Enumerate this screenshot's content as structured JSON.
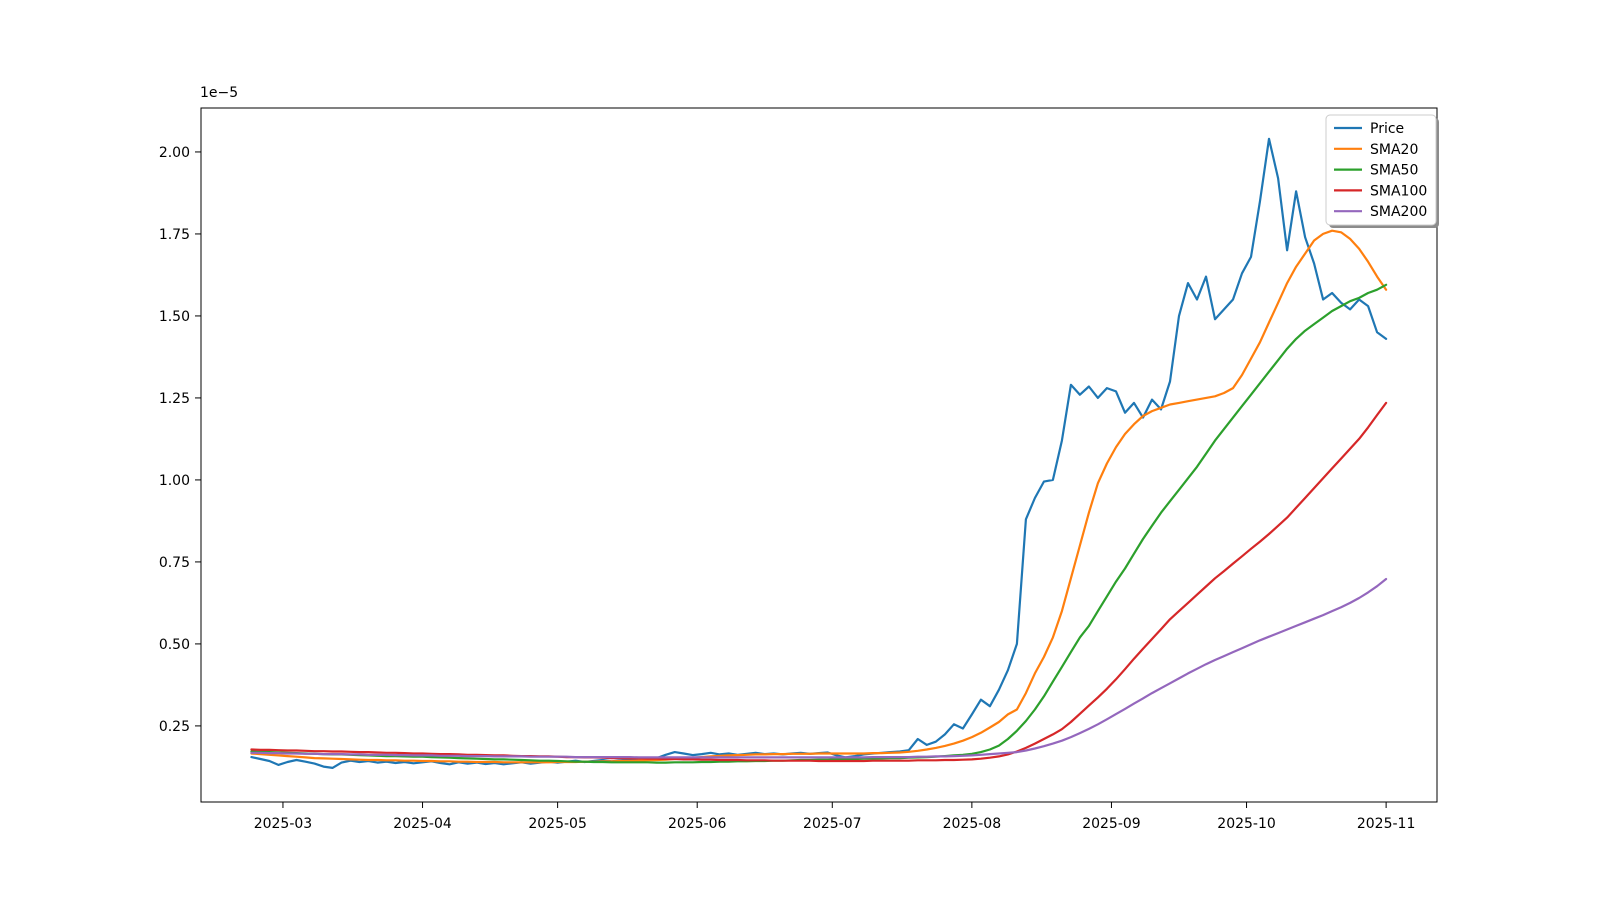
{
  "figure": {
    "offset_label": "1e−5",
    "background": "#ffffff"
  },
  "legend": {
    "position": "upper right",
    "entries": [
      {
        "label": "Price",
        "color": "#1f77b4"
      },
      {
        "label": "SMA20",
        "color": "#ff7f0e"
      },
      {
        "label": "SMA50",
        "color": "#2ca02c"
      },
      {
        "label": "SMA100",
        "color": "#d62728"
      },
      {
        "label": "SMA200",
        "color": "#9467bd"
      }
    ]
  },
  "chart_data": {
    "type": "line",
    "title": "",
    "xlabel": "",
    "ylabel": "",
    "grid": false,
    "y_scale_factor": "1e−5",
    "legend_position": "upper right",
    "x_unit": "days since 2025-02-22",
    "xlim_days": [
      -11.2,
      263.3
    ],
    "ylim": [
      0.018,
      2.134
    ],
    "x_ticks": [
      {
        "day": 7,
        "label": "2025-03"
      },
      {
        "day": 38,
        "label": "2025-04"
      },
      {
        "day": 68,
        "label": "2025-05"
      },
      {
        "day": 99,
        "label": "2025-06"
      },
      {
        "day": 129,
        "label": "2025-07"
      },
      {
        "day": 160,
        "label": "2025-08"
      },
      {
        "day": 191,
        "label": "2025-09"
      },
      {
        "day": 221,
        "label": "2025-10"
      },
      {
        "day": 252,
        "label": "2025-11"
      }
    ],
    "y_ticks": [
      {
        "value": 0.25,
        "label": "0.25"
      },
      {
        "value": 0.5,
        "label": "0.50"
      },
      {
        "value": 0.75,
        "label": "0.75"
      },
      {
        "value": 1.0,
        "label": "1.00"
      },
      {
        "value": 1.25,
        "label": "1.25"
      },
      {
        "value": 1.5,
        "label": "1.50"
      },
      {
        "value": 1.75,
        "label": "1.75"
      },
      {
        "value": 2.0,
        "label": "2.00"
      }
    ],
    "days": [
      0,
      2,
      4,
      6,
      8,
      10,
      12,
      14,
      16,
      18,
      20,
      22,
      24,
      26,
      28,
      30,
      32,
      34,
      36,
      38,
      40,
      42,
      44,
      46,
      48,
      50,
      52,
      54,
      56,
      58,
      60,
      62,
      64,
      66,
      68,
      70,
      72,
      74,
      76,
      78,
      80,
      82,
      84,
      86,
      88,
      90,
      92,
      94,
      96,
      98,
      100,
      102,
      104,
      106,
      108,
      110,
      112,
      114,
      116,
      118,
      120,
      122,
      124,
      126,
      128,
      130,
      132,
      134,
      136,
      138,
      140,
      142,
      144,
      146,
      148,
      150,
      152,
      154,
      156,
      158,
      160,
      162,
      164,
      166,
      168,
      170,
      172,
      174,
      176,
      178,
      180,
      182,
      184,
      186,
      188,
      190,
      192,
      194,
      196,
      198,
      200,
      202,
      204,
      206,
      208,
      210,
      212,
      214,
      216,
      218,
      220,
      222,
      224,
      226,
      228,
      230,
      232,
      234,
      236,
      238,
      240,
      242,
      244,
      246,
      248,
      250,
      252
    ],
    "series": [
      {
        "name": "Price",
        "color": "#1f77b4",
        "values": [
          0.155,
          0.149,
          0.143,
          0.131,
          0.14,
          0.146,
          0.141,
          0.135,
          0.126,
          0.122,
          0.138,
          0.144,
          0.14,
          0.143,
          0.138,
          0.141,
          0.137,
          0.14,
          0.136,
          0.139,
          0.142,
          0.137,
          0.133,
          0.139,
          0.135,
          0.138,
          0.134,
          0.137,
          0.133,
          0.136,
          0.139,
          0.135,
          0.138,
          0.141,
          0.138,
          0.141,
          0.144,
          0.14,
          0.143,
          0.146,
          0.142,
          0.145,
          0.148,
          0.144,
          0.147,
          0.152,
          0.162,
          0.17,
          0.166,
          0.161,
          0.164,
          0.168,
          0.163,
          0.166,
          0.162,
          0.165,
          0.168,
          0.164,
          0.166,
          0.163,
          0.166,
          0.168,
          0.165,
          0.167,
          0.169,
          0.16,
          0.154,
          0.158,
          0.163,
          0.166,
          0.168,
          0.17,
          0.172,
          0.176,
          0.21,
          0.192,
          0.202,
          0.224,
          0.255,
          0.242,
          0.285,
          0.33,
          0.31,
          0.36,
          0.42,
          0.5,
          0.88,
          0.945,
          0.995,
          1.0,
          1.12,
          1.29,
          1.26,
          1.285,
          1.25,
          1.28,
          1.27,
          1.205,
          1.235,
          1.19,
          1.245,
          1.215,
          1.3,
          1.5,
          1.6,
          1.55,
          1.62,
          1.49,
          1.52,
          1.55,
          1.63,
          1.68,
          1.85,
          2.04,
          1.92,
          1.7,
          1.88,
          1.74,
          1.66,
          1.55,
          1.57,
          1.54,
          1.52,
          1.55,
          1.53,
          1.45,
          1.43
        ]
      },
      {
        "name": "SMA20",
        "color": "#ff7f0e",
        "values": [
          0.166,
          0.164,
          0.162,
          0.16,
          0.158,
          0.156,
          0.154,
          0.152,
          0.151,
          0.15,
          0.149,
          0.148,
          0.147,
          0.146,
          0.146,
          0.145,
          0.145,
          0.144,
          0.144,
          0.143,
          0.143,
          0.142,
          0.142,
          0.141,
          0.141,
          0.14,
          0.14,
          0.14,
          0.139,
          0.139,
          0.139,
          0.139,
          0.139,
          0.139,
          0.14,
          0.14,
          0.14,
          0.141,
          0.141,
          0.142,
          0.142,
          0.143,
          0.143,
          0.144,
          0.145,
          0.146,
          0.147,
          0.149,
          0.151,
          0.153,
          0.155,
          0.157,
          0.159,
          0.16,
          0.161,
          0.162,
          0.163,
          0.163,
          0.164,
          0.164,
          0.165,
          0.165,
          0.165,
          0.166,
          0.166,
          0.166,
          0.166,
          0.166,
          0.166,
          0.167,
          0.167,
          0.168,
          0.169,
          0.171,
          0.174,
          0.178,
          0.183,
          0.189,
          0.196,
          0.205,
          0.216,
          0.229,
          0.245,
          0.262,
          0.285,
          0.3,
          0.35,
          0.41,
          0.46,
          0.52,
          0.6,
          0.7,
          0.8,
          0.9,
          0.99,
          1.05,
          1.1,
          1.14,
          1.17,
          1.195,
          1.21,
          1.22,
          1.23,
          1.235,
          1.24,
          1.245,
          1.25,
          1.255,
          1.265,
          1.28,
          1.32,
          1.37,
          1.42,
          1.48,
          1.54,
          1.6,
          1.65,
          1.69,
          1.73,
          1.75,
          1.76,
          1.755,
          1.735,
          1.705,
          1.665,
          1.62,
          1.58
        ]
      },
      {
        "name": "SMA50",
        "color": "#2ca02c",
        "values": [
          0.172,
          0.171,
          0.17,
          0.169,
          0.168,
          0.167,
          0.166,
          0.165,
          0.164,
          0.163,
          0.163,
          0.162,
          0.161,
          0.16,
          0.159,
          0.158,
          0.158,
          0.157,
          0.156,
          0.156,
          0.155,
          0.154,
          0.153,
          0.152,
          0.151,
          0.15,
          0.149,
          0.148,
          0.148,
          0.147,
          0.146,
          0.145,
          0.144,
          0.144,
          0.143,
          0.142,
          0.141,
          0.141,
          0.14,
          0.14,
          0.139,
          0.139,
          0.139,
          0.139,
          0.139,
          0.138,
          0.138,
          0.139,
          0.139,
          0.139,
          0.14,
          0.14,
          0.141,
          0.141,
          0.142,
          0.142,
          0.143,
          0.143,
          0.144,
          0.144,
          0.145,
          0.146,
          0.146,
          0.147,
          0.147,
          0.148,
          0.149,
          0.149,
          0.15,
          0.15,
          0.151,
          0.152,
          0.152,
          0.153,
          0.154,
          0.155,
          0.156,
          0.158,
          0.16,
          0.162,
          0.165,
          0.17,
          0.178,
          0.19,
          0.21,
          0.235,
          0.265,
          0.3,
          0.34,
          0.385,
          0.43,
          0.475,
          0.52,
          0.555,
          0.6,
          0.645,
          0.69,
          0.73,
          0.775,
          0.82,
          0.86,
          0.9,
          0.935,
          0.97,
          1.005,
          1.04,
          1.08,
          1.12,
          1.155,
          1.19,
          1.225,
          1.26,
          1.295,
          1.33,
          1.365,
          1.4,
          1.43,
          1.455,
          1.475,
          1.495,
          1.515,
          1.53,
          1.545,
          1.555,
          1.57,
          1.58,
          1.595
        ]
      },
      {
        "name": "SMA100",
        "color": "#d62728",
        "values": [
          0.178,
          0.177,
          0.177,
          0.176,
          0.175,
          0.175,
          0.174,
          0.173,
          0.173,
          0.172,
          0.172,
          0.171,
          0.17,
          0.17,
          0.169,
          0.168,
          0.168,
          0.167,
          0.166,
          0.166,
          0.165,
          0.164,
          0.164,
          0.163,
          0.162,
          0.162,
          0.161,
          0.16,
          0.16,
          0.159,
          0.158,
          0.158,
          0.157,
          0.157,
          0.156,
          0.155,
          0.155,
          0.154,
          0.154,
          0.153,
          0.152,
          0.152,
          0.151,
          0.151,
          0.15,
          0.15,
          0.149,
          0.149,
          0.148,
          0.148,
          0.147,
          0.147,
          0.146,
          0.146,
          0.146,
          0.145,
          0.145,
          0.145,
          0.144,
          0.144,
          0.144,
          0.144,
          0.144,
          0.143,
          0.143,
          0.143,
          0.143,
          0.143,
          0.143,
          0.144,
          0.144,
          0.144,
          0.144,
          0.144,
          0.145,
          0.145,
          0.145,
          0.146,
          0.146,
          0.147,
          0.148,
          0.15,
          0.153,
          0.157,
          0.163,
          0.172,
          0.183,
          0.196,
          0.21,
          0.224,
          0.24,
          0.262,
          0.287,
          0.312,
          0.337,
          0.363,
          0.392,
          0.423,
          0.455,
          0.485,
          0.515,
          0.545,
          0.575,
          0.6,
          0.625,
          0.65,
          0.675,
          0.7,
          0.722,
          0.745,
          0.767,
          0.79,
          0.812,
          0.835,
          0.86,
          0.885,
          0.915,
          0.945,
          0.975,
          1.005,
          1.035,
          1.065,
          1.095,
          1.125,
          1.16,
          1.198,
          1.235
        ]
      },
      {
        "name": "SMA200",
        "color": "#9467bd",
        "values": [
          0.168,
          0.168,
          0.167,
          0.167,
          0.166,
          0.166,
          0.165,
          0.165,
          0.164,
          0.164,
          0.164,
          0.163,
          0.163,
          0.162,
          0.162,
          0.162,
          0.161,
          0.161,
          0.16,
          0.16,
          0.16,
          0.159,
          0.159,
          0.159,
          0.158,
          0.158,
          0.158,
          0.157,
          0.157,
          0.157,
          0.157,
          0.156,
          0.156,
          0.156,
          0.156,
          0.156,
          0.155,
          0.155,
          0.155,
          0.155,
          0.155,
          0.155,
          0.155,
          0.154,
          0.154,
          0.154,
          0.154,
          0.154,
          0.154,
          0.154,
          0.154,
          0.154,
          0.154,
          0.154,
          0.154,
          0.154,
          0.154,
          0.154,
          0.154,
          0.154,
          0.154,
          0.154,
          0.154,
          0.154,
          0.154,
          0.154,
          0.154,
          0.154,
          0.154,
          0.155,
          0.155,
          0.155,
          0.155,
          0.155,
          0.156,
          0.156,
          0.157,
          0.157,
          0.158,
          0.159,
          0.16,
          0.162,
          0.164,
          0.166,
          0.168,
          0.17,
          0.175,
          0.181,
          0.188,
          0.196,
          0.205,
          0.216,
          0.228,
          0.241,
          0.255,
          0.27,
          0.286,
          0.302,
          0.318,
          0.334,
          0.35,
          0.365,
          0.38,
          0.395,
          0.41,
          0.424,
          0.438,
          0.451,
          0.463,
          0.475,
          0.487,
          0.499,
          0.511,
          0.522,
          0.533,
          0.544,
          0.555,
          0.566,
          0.577,
          0.588,
          0.6,
          0.612,
          0.625,
          0.64,
          0.657,
          0.676,
          0.698
        ]
      }
    ]
  }
}
